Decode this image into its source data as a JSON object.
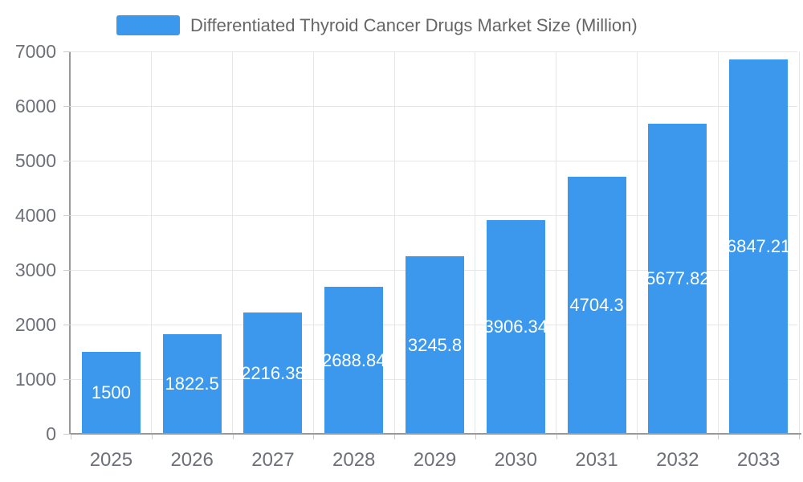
{
  "chart_data": {
    "type": "bar",
    "title": "Differentiated Thyroid Cancer Drugs Market Size (Million)",
    "categories": [
      "2025",
      "2026",
      "2027",
      "2028",
      "2029",
      "2030",
      "2031",
      "2032",
      "2033"
    ],
    "values": [
      1500,
      1822.5,
      2216.38,
      2688.84,
      3245.8,
      3906.34,
      4704.3,
      5677.82,
      6847.21
    ],
    "value_labels": [
      "1500",
      "1822.5",
      "2216.38",
      "2688.84",
      "3245.8",
      "3906.34",
      "4704.3",
      "5677.82",
      "6847.21"
    ],
    "xlabel": "",
    "ylabel": "",
    "ylim": [
      0,
      7000
    ],
    "ytick_interval": 1000,
    "ytick_labels": [
      "0",
      "1000",
      "2000",
      "3000",
      "4000",
      "5000",
      "6000",
      "7000"
    ],
    "grid": true,
    "legend_position": "top",
    "legend_entries": [
      "Differentiated Thyroid Cancer Drugs Market Size (Million)"
    ],
    "colors": {
      "bar": "#3B98EC",
      "bar_label": "#FFFFFF",
      "axis_line": "#999999",
      "tick": "#CCCCCC",
      "gridline": "#E6E6E6",
      "axis_text": "#6E7079",
      "legend_text": "#666666",
      "background": "#FFFFFF"
    }
  }
}
